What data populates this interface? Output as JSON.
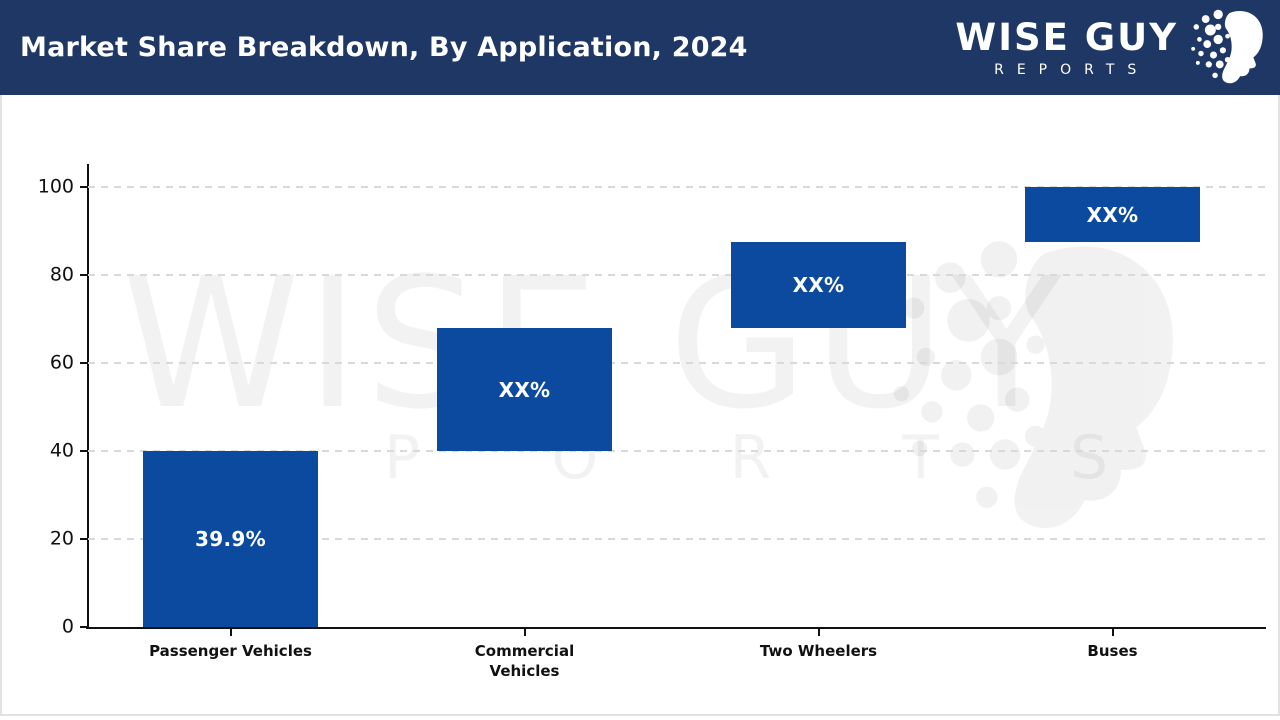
{
  "header": {
    "title": "Market Share Breakdown, By Application, 2024",
    "logo": {
      "line1": "WISE GUY",
      "line2": "REPORTS",
      "face_icon": "dotted-head-profile"
    }
  },
  "watermark": {
    "line1": "WISE GUY",
    "line2": "P O R T S",
    "face_icon": "dotted-head-profile"
  },
  "chart_data": {
    "type": "bar",
    "subtype": "waterfall",
    "title": "Market Share Breakdown, By Application, 2024",
    "categories": [
      "Passenger Vehicles",
      "Commercial Vehicles",
      "Two Wheelers",
      "Buses"
    ],
    "xtick_labels": [
      "Passenger Vehicles",
      "Commercial\nVehicles",
      "Two Wheelers",
      "Buses"
    ],
    "segments": [
      {
        "category": "Passenger Vehicles",
        "label": "39.9%",
        "start": 0,
        "end": 39.9
      },
      {
        "category": "Commercial Vehicles",
        "label": "XX%",
        "start": 39.9,
        "end": 68
      },
      {
        "category": "Two Wheelers",
        "label": "XX%",
        "start": 68,
        "end": 87.5
      },
      {
        "category": "Buses",
        "label": "XX%",
        "start": 87.5,
        "end": 100
      }
    ],
    "ylim": [
      0,
      100
    ],
    "yticks": [
      0,
      20,
      40,
      60,
      80,
      100
    ],
    "grid": "horizontal-dashed",
    "legend": "none",
    "bar_color": "#0c4aa0",
    "bar_label_color": "#ffffff",
    "header_color": "#1e3765"
  }
}
